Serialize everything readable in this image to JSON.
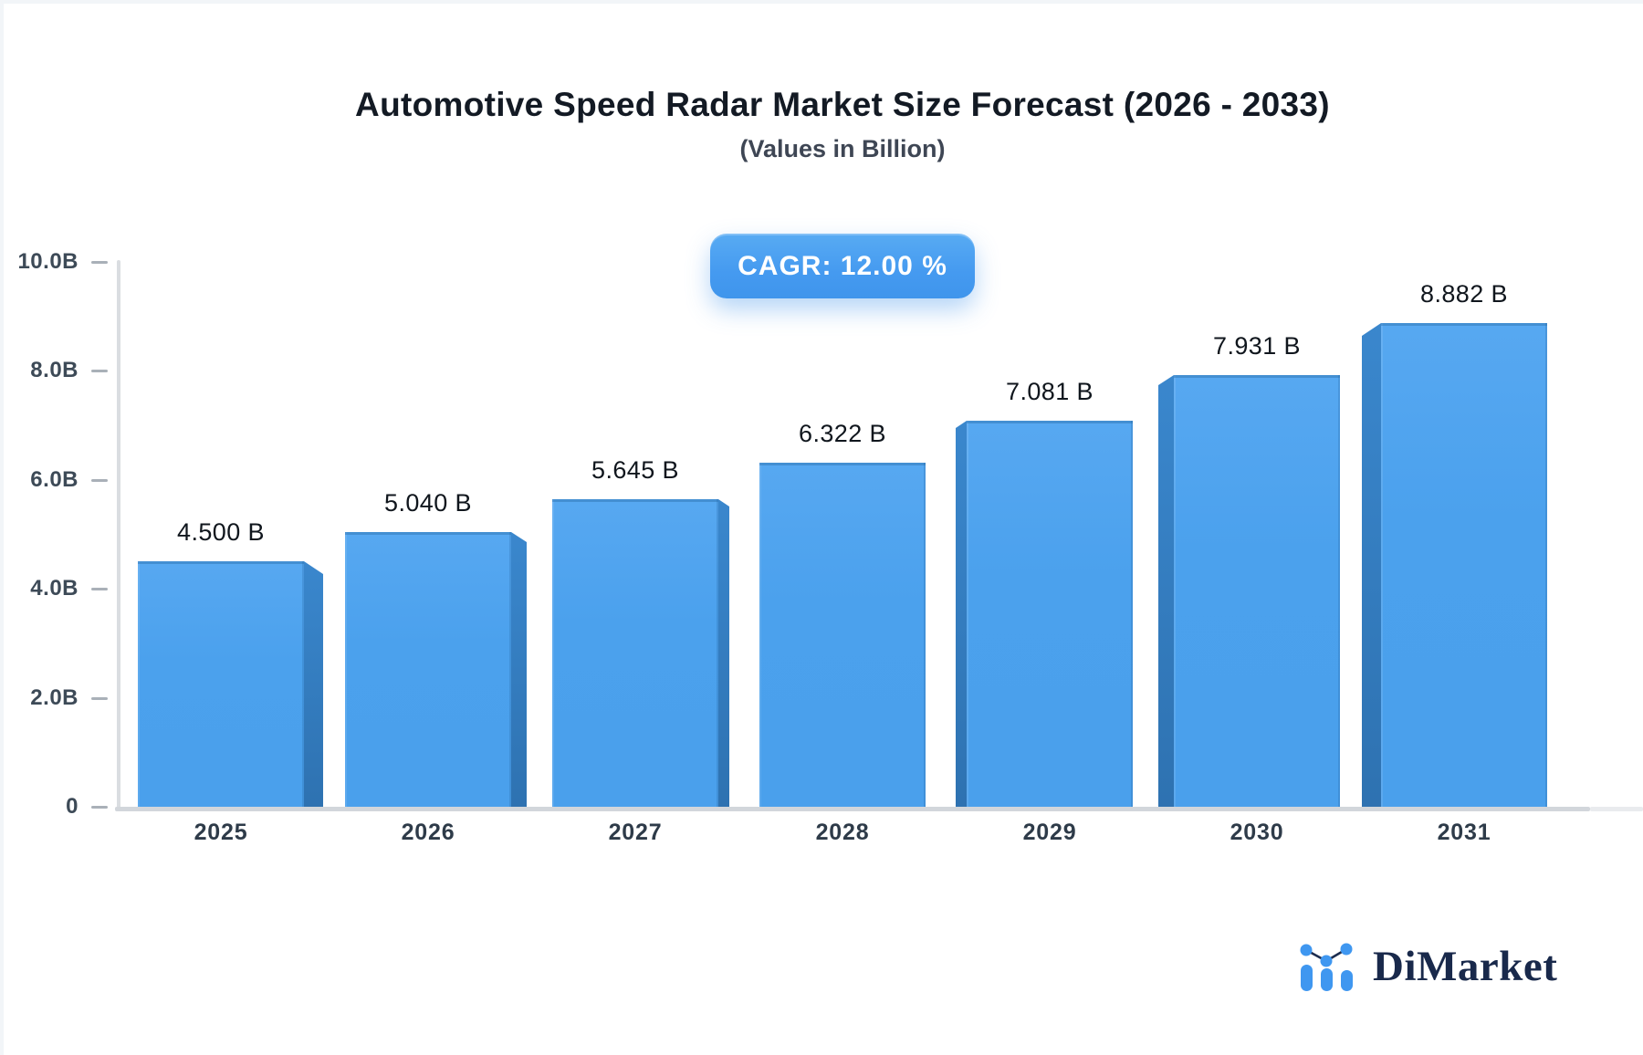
{
  "chart_data": {
    "type": "bar",
    "title": "Automotive Speed Radar Market Size Forecast (2026 - 2033)",
    "subtitle": "(Values in Billion)",
    "cagr_label": "CAGR: 12.00 %",
    "categories": [
      "2025",
      "2026",
      "2027",
      "2028",
      "2029",
      "2030",
      "2031"
    ],
    "values": [
      4.5,
      5.04,
      5.645,
      6.322,
      7.081,
      7.931,
      8.882
    ],
    "value_labels": [
      "4.500 B",
      "5.040 B",
      "5.645 B",
      "6.322 B",
      "7.081 B",
      "7.931 B",
      "8.882 B"
    ],
    "xlabel": "",
    "ylabel": "",
    "ylim": [
      0,
      10
    ],
    "yticks": [
      {
        "label": "0",
        "value": 0
      },
      {
        "label": "2.0B",
        "value": 2
      },
      {
        "label": "4.0B",
        "value": 4
      },
      {
        "label": "6.0B",
        "value": 6
      },
      {
        "label": "8.0B",
        "value": 8
      },
      {
        "label": "10.0B",
        "value": 10
      }
    ],
    "grid": "off",
    "legend": "none",
    "colors": {
      "bar_front": "#4aa0ec",
      "bar_side": "#2f76b8",
      "badge": "#459af0",
      "axis": "#d2d6db",
      "tick_dash": "#a9b0b8"
    }
  },
  "footer": {
    "brand": "DiMarket"
  }
}
